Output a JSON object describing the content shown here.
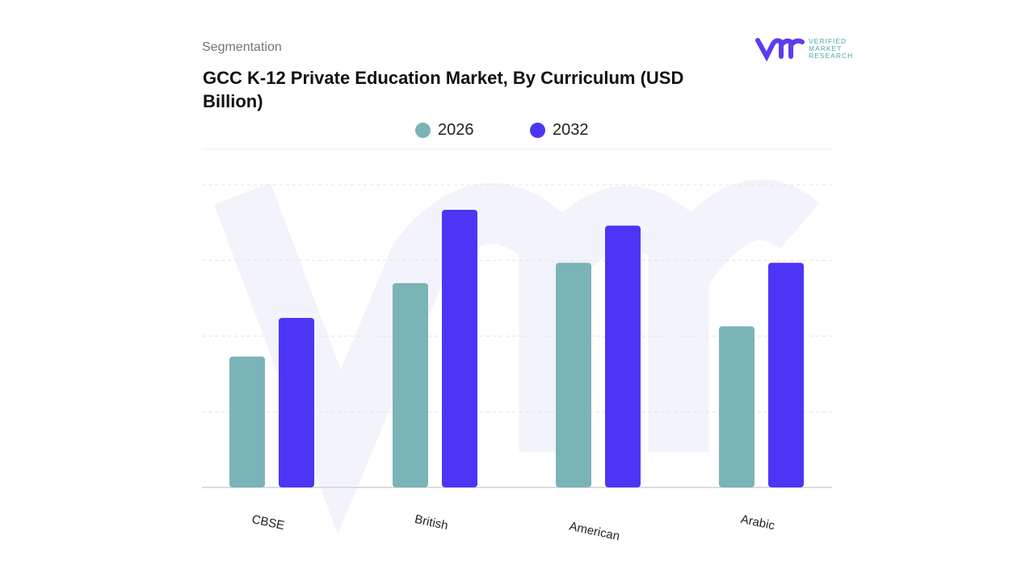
{
  "header": {
    "segment_label": "Segmentation",
    "logo_text": "VERIFIED MARKET RESEARCH"
  },
  "chart_data": {
    "type": "bar",
    "title": "GCC K-12 Private Education Market, By Curriculum (USD Billion)",
    "categories": [
      "CBSE",
      "British",
      "American",
      "Arabic"
    ],
    "series": [
      {
        "name": "2026",
        "color": "#7ab4b6",
        "values": [
          1.73,
          2.7,
          2.97,
          2.13
        ]
      },
      {
        "name": "2032",
        "color": "#4c35f5",
        "values": [
          2.24,
          3.67,
          3.46,
          2.97
        ]
      }
    ],
    "ylim": [
      0,
      4
    ],
    "grid": true,
    "y_tick_labels_shown": false,
    "legend_position": "top",
    "xlabel": "",
    "ylabel": ""
  }
}
